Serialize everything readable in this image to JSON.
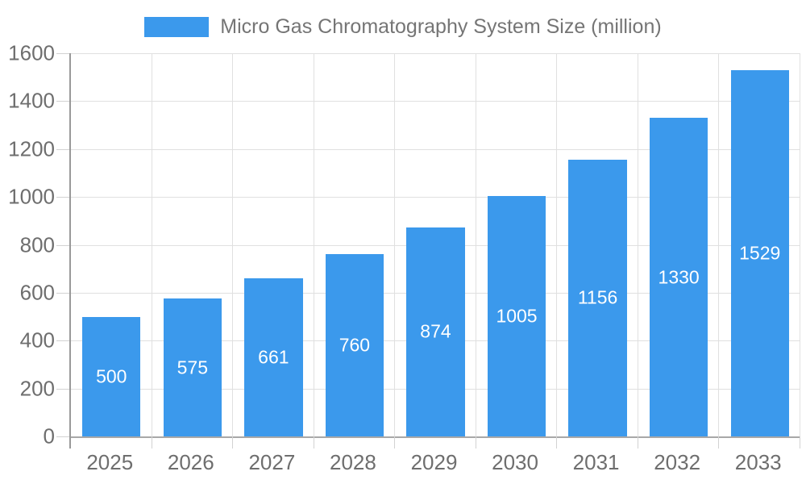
{
  "chart": {
    "legend": {
      "label": "Micro Gas Chromatography System Size (million)"
    },
    "colors": {
      "background": "#FFFFFF",
      "bar": "#3B99EC",
      "grid": "#E0E0E0",
      "tick": "#D2D2D2",
      "axis_line": "#999999",
      "zero_line": "#A8A8A8",
      "axis_text": "#6E6E6E",
      "legend_text": "#757575",
      "value_text": "#FFFFFF"
    }
  },
  "chart_data": {
    "type": "bar",
    "title": "Micro Gas Chromatography System Size (million)",
    "categories": [
      "2025",
      "2026",
      "2027",
      "2028",
      "2029",
      "2030",
      "2031",
      "2032",
      "2033"
    ],
    "values": [
      500,
      575,
      661,
      760,
      874,
      1005,
      1156,
      1330,
      1529
    ],
    "xlabel": "",
    "ylabel": "",
    "ylim": [
      0,
      1600
    ],
    "ytick_step": 200,
    "grid": true,
    "legend_position": "top",
    "value_label_position": "inside-center"
  }
}
